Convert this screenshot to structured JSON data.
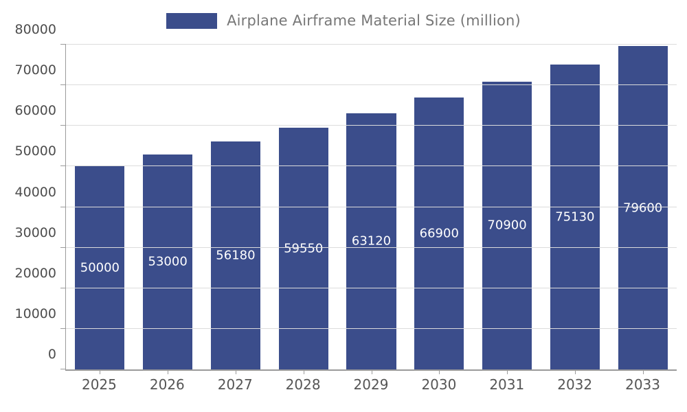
{
  "chart_data": {
    "type": "bar",
    "title": "Airplane Airframe Material Size (million)",
    "categories": [
      "2025",
      "2026",
      "2027",
      "2028",
      "2029",
      "2030",
      "2031",
      "2032",
      "2033"
    ],
    "values": [
      50000,
      53000,
      56180,
      59550,
      63120,
      66900,
      70900,
      75130,
      79600
    ],
    "xlabel": "",
    "ylabel": "",
    "ylim": [
      0,
      80000
    ],
    "ytick_step": 10000,
    "grid": true,
    "legend_position": "top-center",
    "bar_color": "#3b4d8b",
    "label_color": "#ffffff",
    "axis_color": "#9a9a9a",
    "grid_color": "#dcdcdc",
    "tick_label_color": "#4d4d4d",
    "title_color": "#777777"
  }
}
